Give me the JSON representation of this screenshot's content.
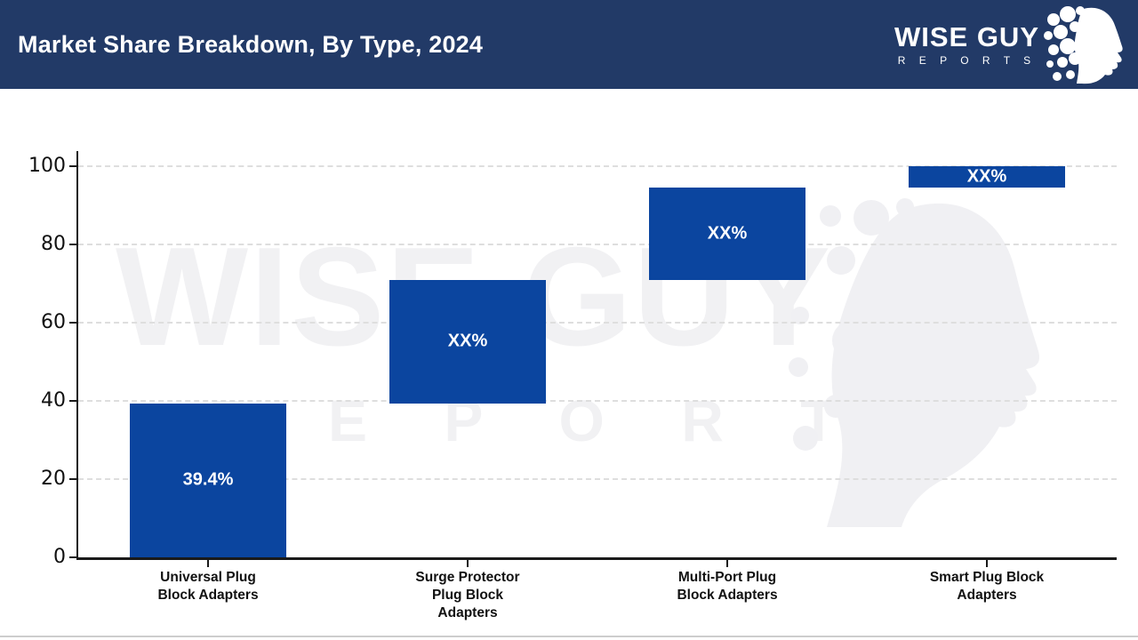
{
  "header": {
    "title": "Market Share Breakdown, By Type, 2024",
    "logo": {
      "name": "WISE GUY",
      "sub": "R E P O R T S"
    }
  },
  "watermark": {
    "line1": "WISE GUY",
    "line2": "R E P O R T S"
  },
  "chart_data": {
    "type": "bar",
    "subtype": "waterfall",
    "title": "Market Share Breakdown, By Type, 2024",
    "ylabel": "",
    "xlabel": "",
    "ylim": [
      0,
      104
    ],
    "yticks": [
      0,
      20,
      40,
      60,
      80,
      100
    ],
    "grid": "horizontal dashed",
    "legend": "none",
    "bar_color": "#0B459F",
    "bar_label_color": "#ffffff",
    "categories": [
      {
        "name": "Universal Plug Block Adapters",
        "label_lines": [
          "Universal Plug",
          "Block Adapters"
        ],
        "start": 0,
        "end": 39.4,
        "value": 39.4,
        "label": "39.4%"
      },
      {
        "name": "Surge Protector Plug Block Adapters",
        "label_lines": [
          "Surge Protector",
          "Plug Block",
          "Adapters"
        ],
        "start": 39.4,
        "end": 70.9,
        "value": "XX",
        "label": "XX%"
      },
      {
        "name": "Multi-Port Plug Block Adapters",
        "label_lines": [
          "Multi-Port Plug",
          "Block Adapters"
        ],
        "start": 70.9,
        "end": 94.5,
        "value": "XX",
        "label": "XX%"
      },
      {
        "name": "Smart Plug Block Adapters",
        "label_lines": [
          "Smart Plug Block",
          "Adapters"
        ],
        "start": 94.5,
        "end": 100,
        "value": "XX",
        "label": "XX%"
      }
    ]
  }
}
